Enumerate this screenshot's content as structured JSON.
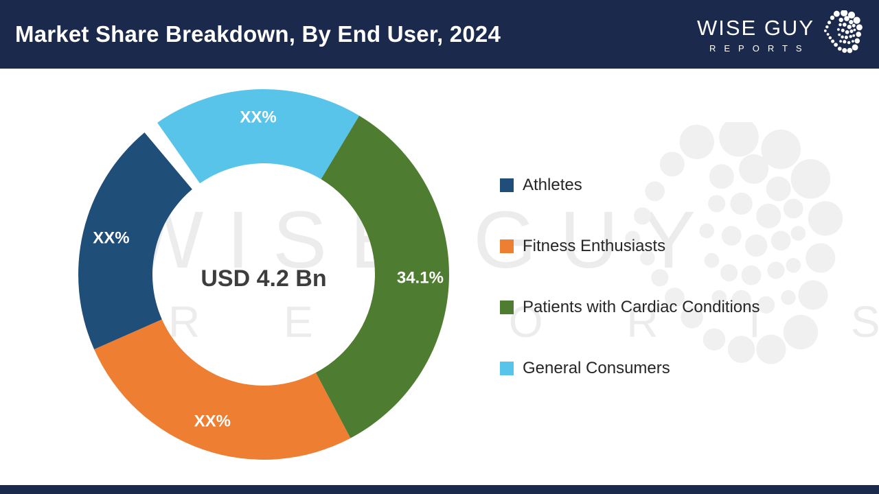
{
  "header": {
    "title": "Market Share Breakdown, By End User, 2024",
    "logo": {
      "line1": "WISE GUY",
      "line2": "REPORTS"
    }
  },
  "chart_data": {
    "type": "pie",
    "subtype": "donut",
    "center_label": "USD 4.2 Bn",
    "start_angle_deg": -35,
    "gap_deg": 5,
    "segments": [
      {
        "name": "General Consumers",
        "display": "XX%",
        "value": 18.6,
        "color": "#59c4ea"
      },
      {
        "name": "Patients with Cardiac Conditions",
        "display": "34.1%",
        "value": 34.1,
        "color": "#4e7c30"
      },
      {
        "name": "Fitness Enthusiasts",
        "display": "XX%",
        "value": 26.5,
        "color": "#ee7e31"
      },
      {
        "name": "Athletes",
        "display": "XX%",
        "value": 20.8,
        "color": "#1f4e79"
      }
    ],
    "legend_position": "right",
    "title": "Market Share Breakdown, By End User, 2024"
  },
  "legend": {
    "items": [
      {
        "label": "Athletes",
        "color": "#1f4e79"
      },
      {
        "label": "Fitness Enthusiasts",
        "color": "#ee7e31"
      },
      {
        "label": "Patients with Cardiac Conditions",
        "color": "#4e7c30"
      },
      {
        "label": "General Consumers",
        "color": "#59c4ea"
      }
    ]
  },
  "watermark": {
    "line1": "WISE GUY",
    "line2": "R E P O R T S"
  }
}
